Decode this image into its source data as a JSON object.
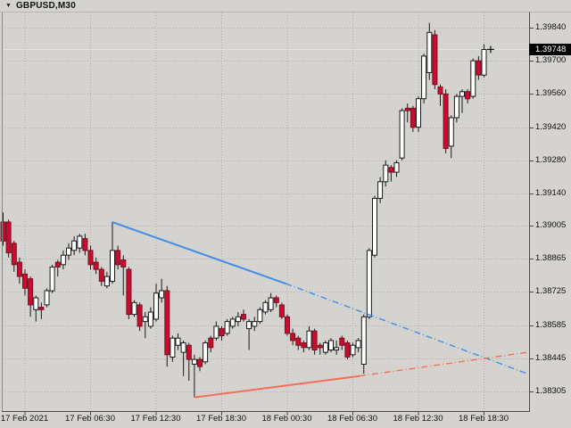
{
  "window": {
    "title": "GBPUSD,M30",
    "caret": "▼"
  },
  "colors": {
    "background": "#d5d3cf",
    "grid": "#b2b0ac",
    "bull_fill": "#ffffff",
    "bear_fill": "#cb0b30",
    "candle_outline": "#1a1a1a",
    "bear_outline": "#74101f",
    "trend_blue": "#3f8ee8",
    "trend_red": "#f4705a",
    "axis_line": "#4a4845",
    "axis_text": "#111111",
    "bid_line": "#e6e4e0",
    "price_tag_bg": "#000000",
    "price_tag_text": "#ffffff"
  },
  "price_axis": {
    "current_price": "1.39748",
    "labels": [
      "1.39840",
      "1.39700",
      "1.39560",
      "1.39420",
      "1.39280",
      "1.39140",
      "1.39005",
      "1.38865",
      "1.38725",
      "1.38585",
      "1.38445",
      "1.38305"
    ]
  },
  "time_axis": {
    "labels": [
      "17 Feb 2021",
      "17 Feb 06:30",
      "17 Feb 12:30",
      "17 Feb 18:30",
      "18 Feb 00:30",
      "18 Feb 06:30",
      "18 Feb 12:30",
      "18 Feb 18:30"
    ],
    "tick_bars": [
      4,
      16,
      28,
      40,
      52,
      64,
      76,
      88
    ]
  },
  "chart_data": {
    "type": "candlestick",
    "symbol": "GBPUSD",
    "timeframe": "M30",
    "title": "GBPUSD,M30",
    "bid": 1.39748,
    "ylim": [
      1.3822,
      1.399
    ],
    "grid": "dotted",
    "x_tick_labels": [
      "17 Feb 2021",
      "17 Feb 06:30",
      "17 Feb 12:30",
      "17 Feb 18:30",
      "18 Feb 00:30",
      "18 Feb 06:30",
      "18 Feb 12:30",
      "18 Feb 18:30"
    ],
    "y_tick_values": [
      1.3984,
      1.397,
      1.3956,
      1.3942,
      1.3928,
      1.3914,
      1.39005,
      1.38865,
      1.38725,
      1.38585,
      1.38445,
      1.38305
    ],
    "candles_ohlc": [
      [
        1.3902,
        1.3906,
        1.3892,
        1.3894
      ],
      [
        1.3902,
        1.3903,
        1.3887,
        1.3889
      ],
      [
        1.3893,
        1.3894,
        1.3881,
        1.3884
      ],
      [
        1.3885,
        1.3887,
        1.3876,
        1.3879
      ],
      [
        1.388,
        1.3882,
        1.3871,
        1.3874
      ],
      [
        1.3878,
        1.3879,
        1.3862,
        1.3867
      ],
      [
        1.3865,
        1.3871,
        1.386,
        1.387
      ],
      [
        1.3866,
        1.3868,
        1.3861,
        1.3865
      ],
      [
        1.3867,
        1.3874,
        1.3866,
        1.3873
      ],
      [
        1.3873,
        1.3884,
        1.3872,
        1.3883
      ],
      [
        1.3885,
        1.3886,
        1.3879,
        1.3883
      ],
      [
        1.3884,
        1.389,
        1.3882,
        1.3888
      ],
      [
        1.3888,
        1.3893,
        1.3886,
        1.3891
      ],
      [
        1.389,
        1.3896,
        1.3888,
        1.3894
      ],
      [
        1.3891,
        1.3897,
        1.3889,
        1.3896
      ],
      [
        1.3895,
        1.3897,
        1.3888,
        1.389
      ],
      [
        1.389,
        1.3892,
        1.3882,
        1.3884
      ],
      [
        1.3885,
        1.3887,
        1.388,
        1.3882
      ],
      [
        1.3882,
        1.3883,
        1.3875,
        1.3877
      ],
      [
        1.3875,
        1.3881,
        1.3874,
        1.3879
      ],
      [
        1.3877,
        1.3902,
        1.3876,
        1.389
      ],
      [
        1.389,
        1.3892,
        1.3882,
        1.3884
      ],
      [
        1.3886,
        1.3888,
        1.3871,
        1.3883
      ],
      [
        1.3882,
        1.3883,
        1.3861,
        1.3863
      ],
      [
        1.3863,
        1.3869,
        1.3862,
        1.3868
      ],
      [
        1.3867,
        1.3868,
        1.3856,
        1.3858
      ],
      [
        1.386,
        1.3864,
        1.3853,
        1.3862
      ],
      [
        1.3858,
        1.3866,
        1.3857,
        1.3864
      ],
      [
        1.3861,
        1.3876,
        1.386,
        1.3872
      ],
      [
        1.387,
        1.3878,
        1.3868,
        1.3873
      ],
      [
        1.3873,
        1.3875,
        1.3841,
        1.3846
      ],
      [
        1.3845,
        1.3854,
        1.3843,
        1.3853
      ],
      [
        1.385,
        1.3855,
        1.3848,
        1.3853
      ],
      [
        1.3847,
        1.3852,
        1.3837,
        1.3851
      ],
      [
        1.385,
        1.3851,
        1.3835,
        1.3844
      ],
      [
        1.3842,
        1.3846,
        1.3828,
        1.3844
      ],
      [
        1.3844,
        1.3845,
        1.3839,
        1.3841
      ],
      [
        1.3843,
        1.3852,
        1.3842,
        1.3851
      ],
      [
        1.3853,
        1.3854,
        1.3847,
        1.3849
      ],
      [
        1.3853,
        1.386,
        1.3852,
        1.3858
      ],
      [
        1.3857,
        1.3858,
        1.3852,
        1.3854
      ],
      [
        1.3855,
        1.3861,
        1.3854,
        1.386
      ],
      [
        1.3858,
        1.3862,
        1.3857,
        1.3861
      ],
      [
        1.386,
        1.3864,
        1.3858,
        1.3862
      ],
      [
        1.3863,
        1.3865,
        1.386,
        1.3861
      ],
      [
        1.3857,
        1.3861,
        1.3848,
        1.386
      ],
      [
        1.3858,
        1.3862,
        1.3856,
        1.386
      ],
      [
        1.386,
        1.3866,
        1.3859,
        1.3865
      ],
      [
        1.3864,
        1.3869,
        1.3863,
        1.3868
      ],
      [
        1.3865,
        1.3872,
        1.3864,
        1.387
      ],
      [
        1.387,
        1.3871,
        1.3866,
        1.3868
      ],
      [
        1.3867,
        1.3868,
        1.3861,
        1.3862
      ],
      [
        1.3862,
        1.3863,
        1.3854,
        1.3855
      ],
      [
        1.3855,
        1.3857,
        1.385,
        1.3852
      ],
      [
        1.3853,
        1.3854,
        1.3848,
        1.385
      ],
      [
        1.3851,
        1.3852,
        1.3847,
        1.3849
      ],
      [
        1.3849,
        1.3858,
        1.3848,
        1.3856
      ],
      [
        1.3856,
        1.3857,
        1.3846,
        1.3848
      ],
      [
        1.385,
        1.3851,
        1.3846,
        1.3849
      ],
      [
        1.3847,
        1.3852,
        1.3846,
        1.3851
      ],
      [
        1.3848,
        1.3853,
        1.3847,
        1.3852
      ],
      [
        1.3848,
        1.3852,
        1.3846,
        1.3849
      ],
      [
        1.3853,
        1.3854,
        1.3848,
        1.385
      ],
      [
        1.3851,
        1.3852,
        1.3844,
        1.3845
      ],
      [
        1.3846,
        1.3851,
        1.3845,
        1.385
      ],
      [
        1.3849,
        1.3853,
        1.3847,
        1.3852
      ],
      [
        1.3842,
        1.3863,
        1.3838,
        1.3862
      ],
      [
        1.3862,
        1.3891,
        1.3861,
        1.389
      ],
      [
        1.3888,
        1.3913,
        1.3887,
        1.3912
      ],
      [
        1.3912,
        1.3921,
        1.391,
        1.3919
      ],
      [
        1.3919,
        1.3928,
        1.3917,
        1.3926
      ],
      [
        1.3925,
        1.3926,
        1.3919,
        1.3923
      ],
      [
        1.3923,
        1.3928,
        1.3921,
        1.3927
      ],
      [
        1.3929,
        1.395,
        1.3928,
        1.3949
      ],
      [
        1.395,
        1.3952,
        1.3944,
        1.3949
      ],
      [
        1.395,
        1.3951,
        1.394,
        1.3942
      ],
      [
        1.3942,
        1.3955,
        1.394,
        1.3954
      ],
      [
        1.3954,
        1.3973,
        1.3952,
        1.3972
      ],
      [
        1.3965,
        1.3986,
        1.3962,
        1.3982
      ],
      [
        1.3981,
        1.3983,
        1.3958,
        1.396
      ],
      [
        1.3959,
        1.396,
        1.3951,
        1.3956
      ],
      [
        1.3956,
        1.3958,
        1.3931,
        1.3933
      ],
      [
        1.3934,
        1.3947,
        1.3929,
        1.3946
      ],
      [
        1.3946,
        1.3956,
        1.3944,
        1.3955
      ],
      [
        1.3955,
        1.3958,
        1.3948,
        1.3957
      ],
      [
        1.3957,
        1.3958,
        1.3952,
        1.3954
      ],
      [
        1.3955,
        1.3971,
        1.3954,
        1.397
      ],
      [
        1.397,
        1.3972,
        1.3962,
        1.3964
      ],
      [
        1.3964,
        1.3977,
        1.3963,
        1.39748
      ]
    ],
    "trendlines": [
      {
        "name": "descending-trendline",
        "color": "#3f8ee8",
        "solid_from": {
          "bar": 20.0,
          "price": 1.3902
        },
        "solid_to": {
          "bar": 51.8,
          "price": 1.3876
        },
        "dash_to": {
          "bar": 96.0,
          "price": 1.3838
        },
        "style": "solid-then-dashdot"
      },
      {
        "name": "ascending-trendline",
        "color": "#f4705a",
        "solid_from": {
          "bar": 35.1,
          "price": 1.3828
        },
        "solid_to": {
          "bar": 65.3,
          "price": 1.3837
        },
        "dash_to": {
          "bar": 96.0,
          "price": 1.3847
        },
        "style": "solid-then-dashdot"
      }
    ],
    "current_bar_marker": {
      "bar": 89.3,
      "price": 1.39748,
      "glyph": "+"
    }
  }
}
